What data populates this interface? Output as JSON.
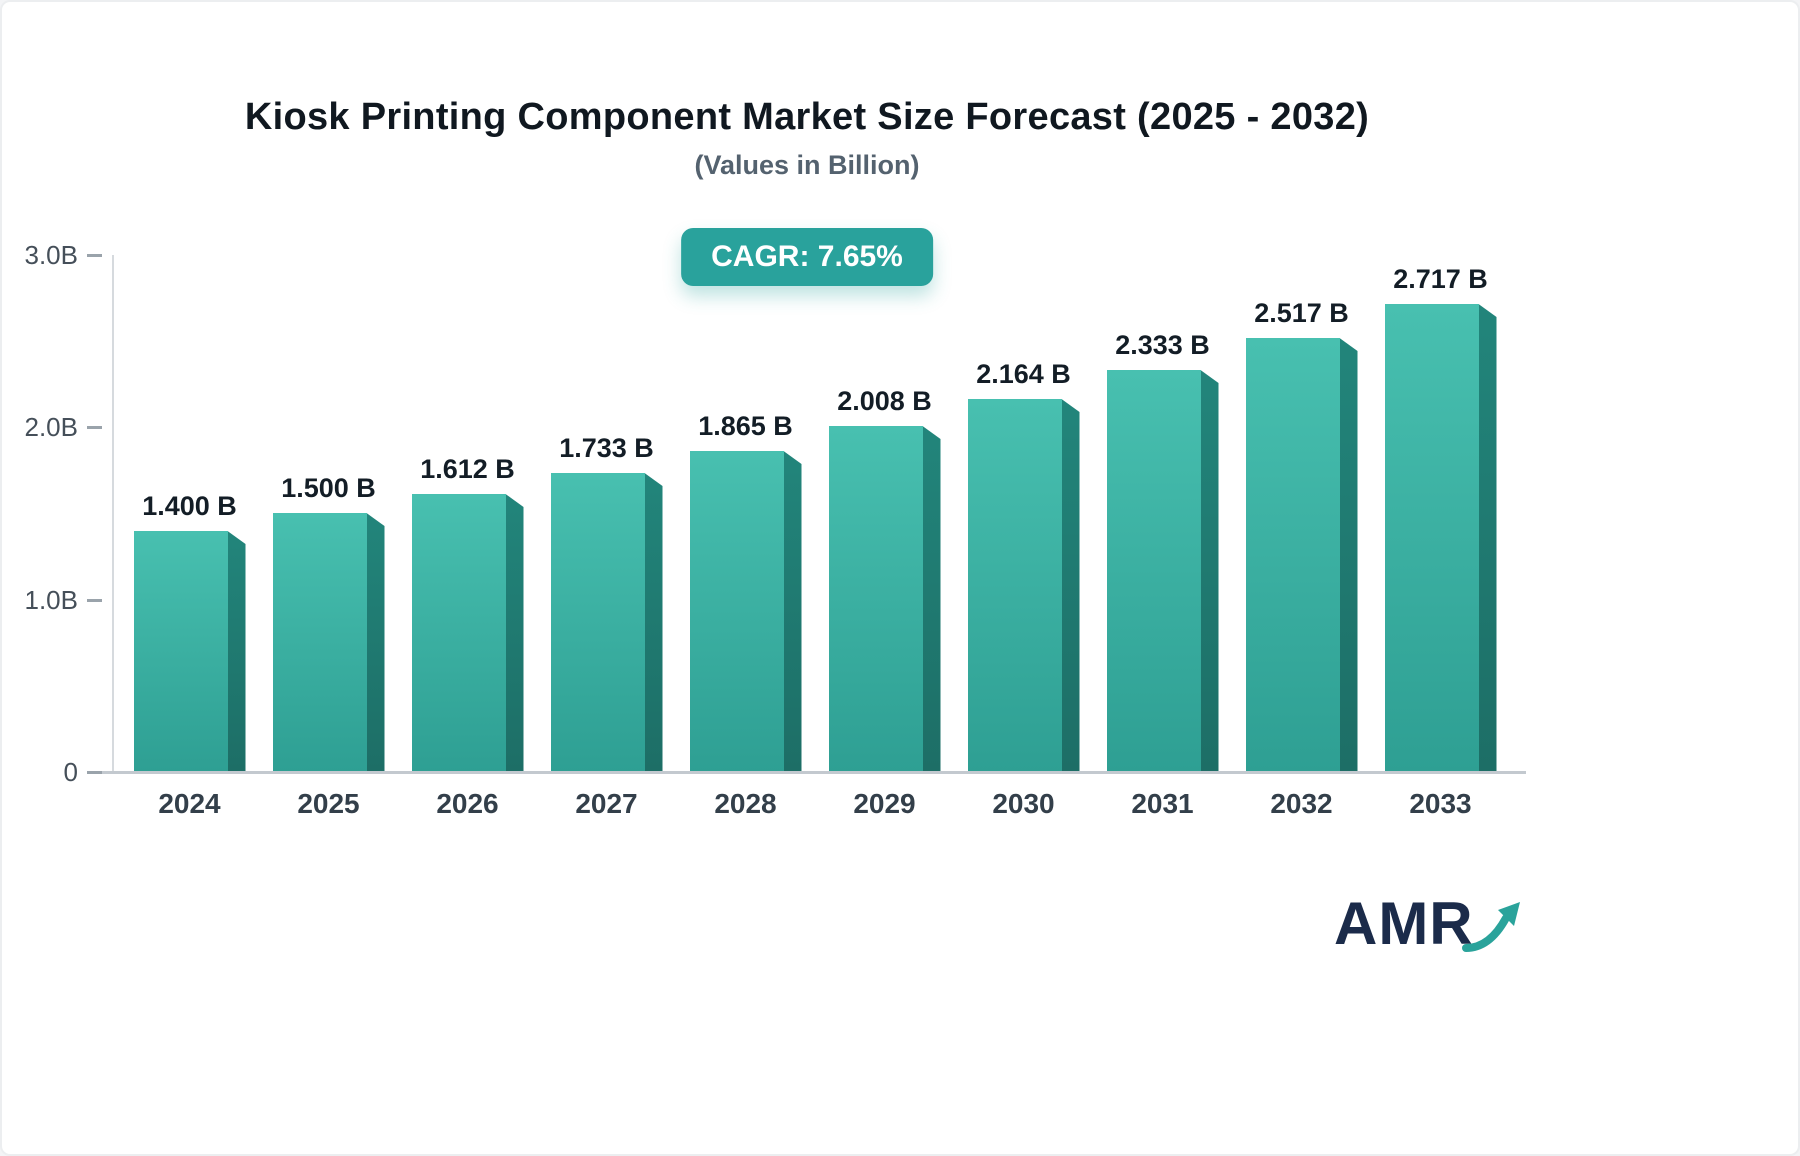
{
  "chart_data": {
    "type": "bar",
    "title": "Kiosk Printing Component Market Size Forecast (2025 - 2032)",
    "subtitle": "(Values in Billion)",
    "cagr_label": "CAGR: 7.65%",
    "categories": [
      "2024",
      "2025",
      "2026",
      "2027",
      "2028",
      "2029",
      "2030",
      "2031",
      "2032",
      "2033"
    ],
    "values": [
      1.4,
      1.5,
      1.612,
      1.733,
      1.865,
      2.008,
      2.164,
      2.333,
      2.517,
      2.717
    ],
    "value_labels": [
      "1.400 B",
      "1.500 B",
      "1.612 B",
      "1.733 B",
      "1.865 B",
      "2.008 B",
      "2.164 B",
      "2.333 B",
      "2.517 B",
      "2.717 B"
    ],
    "xlabel": "",
    "ylabel": "",
    "ylim": [
      0,
      3.0
    ],
    "y_ticks": [
      {
        "label": "3.0B",
        "value": 3.0
      },
      {
        "label": "2.0B",
        "value": 2.0
      },
      {
        "label": "1.0B",
        "value": 1.0
      },
      {
        "label": "0",
        "value": 0
      }
    ],
    "grid": "off",
    "legend_position": "none",
    "colors": {
      "bar_front_top": "#48C0B0",
      "bar_front_bottom": "#2E9F93",
      "bar_side": "#1D6E66",
      "badge_bg": "#29A29C",
      "badge_text": "#FFFFFF",
      "title_text": "#101820",
      "subtitle_text": "#54626F",
      "axis_text": "#454F59",
      "x_label_text": "#333F4A",
      "logo_text": "#1B2B4A",
      "logo_arrow": "#2AA39B"
    }
  },
  "logo": {
    "text": "AMR"
  }
}
